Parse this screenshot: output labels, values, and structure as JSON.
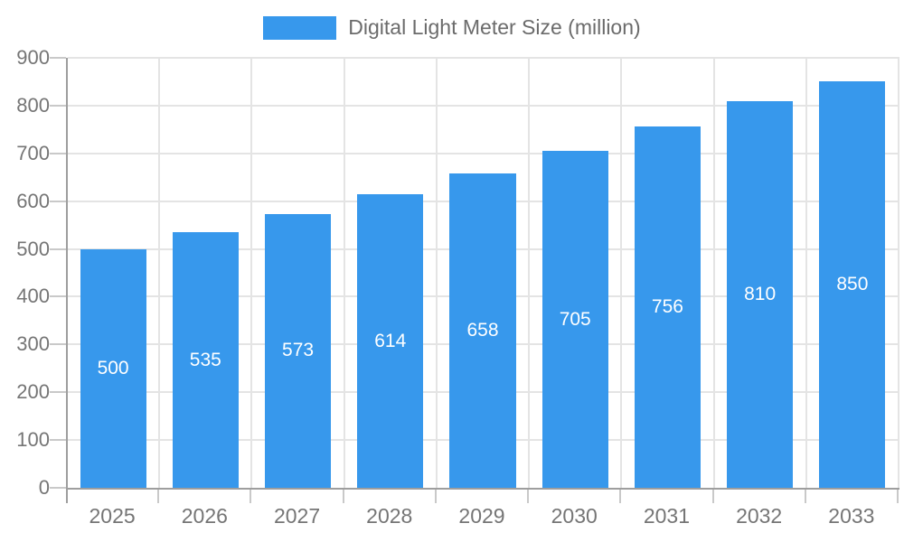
{
  "legend": {
    "label": "Digital Light Meter Size (million)"
  },
  "chart_data": {
    "type": "bar",
    "title": "",
    "series_name": "Digital Light Meter Size (million)",
    "categories": [
      "2025",
      "2026",
      "2027",
      "2028",
      "2029",
      "2030",
      "2031",
      "2032",
      "2033"
    ],
    "values": [
      500,
      535,
      573,
      614,
      658,
      705,
      756,
      810,
      850
    ],
    "xlabel": "",
    "ylabel": "",
    "ylim": [
      0,
      900
    ],
    "ytick_step": 100,
    "ytick_labels": [
      "0",
      "100",
      "200",
      "300",
      "400",
      "500",
      "600",
      "700",
      "800",
      "900"
    ],
    "grid": true,
    "legend_position": "top-center",
    "colors": {
      "bar": "#3798EC",
      "bar_label": "#ffffff",
      "axis_line": "#9e9e9e",
      "gridline": "#e4e4e4",
      "tick": "#c9c9c9",
      "axis_text": "#757575",
      "legend_text": "#6b6b6b",
      "background": "#ffffff"
    }
  }
}
